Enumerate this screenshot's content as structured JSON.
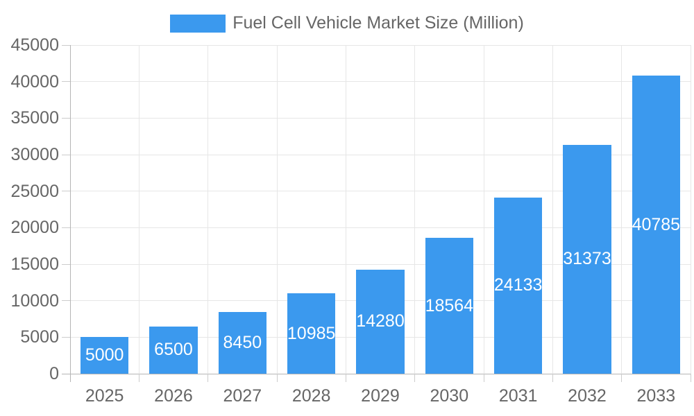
{
  "chart_data": {
    "type": "bar",
    "title": "Fuel Cell Vehicle Market Size (Million)",
    "categories": [
      "2025",
      "2026",
      "2027",
      "2028",
      "2029",
      "2030",
      "2031",
      "2032",
      "2033"
    ],
    "series": [
      {
        "name": "Fuel Cell Vehicle Market Size (Million)",
        "values": [
          5000,
          6500,
          8450,
          10985,
          14280,
          18564,
          24133,
          31373,
          40785
        ],
        "color": "#3b99ee"
      }
    ],
    "xlabel": "",
    "ylabel": "",
    "ylim": [
      0,
      45000
    ],
    "yticks": [
      0,
      5000,
      10000,
      15000,
      20000,
      25000,
      30000,
      35000,
      40000,
      45000
    ],
    "ytick_labels": [
      "0",
      "5000",
      "10000",
      "15000",
      "20000",
      "25000",
      "30000",
      "35000",
      "40000",
      "45000"
    ],
    "grid": true,
    "legend_position": "top",
    "value_labels": "inside-center",
    "bar_width_fraction": 0.7
  },
  "colors": {
    "bar": "#3b99ee",
    "axis_text": "#666666",
    "grid_light": "#e6e6e6",
    "grid_dark": "#b5b5b5",
    "tick": "#cccccc",
    "value_label": "#ffffff",
    "background": "#ffffff"
  }
}
